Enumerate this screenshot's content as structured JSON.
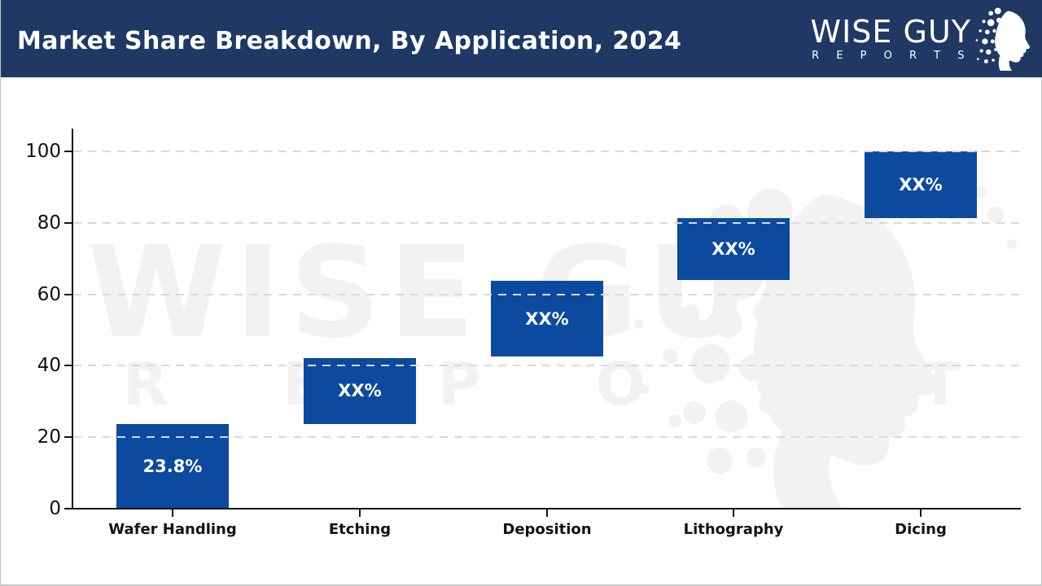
{
  "header": {
    "title": "Market Share Breakdown, By Application, 2024",
    "logo": {
      "name": "WISE GUY",
      "tagline": "R E P O R T S"
    }
  },
  "watermark": {
    "name": "WISE GUY",
    "tagline": "R E P O R T S"
  },
  "colors": {
    "header_bg": "#1f3864",
    "bar_fill": "#0b4a9f",
    "grid": "#d9d9d9",
    "axis": "#151515",
    "bar_label_text": "#ffffff",
    "tick_label_text": "#111111",
    "watermark": "#f2f2f2"
  },
  "chart_data": {
    "type": "bar",
    "subtype": "waterfall",
    "title": "Market Share Breakdown, By Application, 2024",
    "categories": [
      "Wafer Handling",
      "Etching",
      "Deposition",
      "Lithography",
      "Dicing"
    ],
    "segments": [
      {
        "category": "Wafer Handling",
        "start": 0,
        "end": 23.8,
        "label": "23.8%"
      },
      {
        "category": "Etching",
        "start": 23.8,
        "end": 42.2,
        "label": "XX%"
      },
      {
        "category": "Deposition",
        "start": 42.5,
        "end": 63.8,
        "label": "XX%"
      },
      {
        "category": "Lithography",
        "start": 64.0,
        "end": 81.3,
        "label": "XX%"
      },
      {
        "category": "Dicing",
        "start": 81.3,
        "end": 100.0,
        "label": "XX%"
      }
    ],
    "xlabel": "",
    "ylabel": "",
    "ylim": [
      0,
      100
    ],
    "yticks": [
      0,
      20,
      40,
      60,
      80,
      100
    ],
    "grid": "horizontal dashed, drawn above bars",
    "legend": false
  }
}
